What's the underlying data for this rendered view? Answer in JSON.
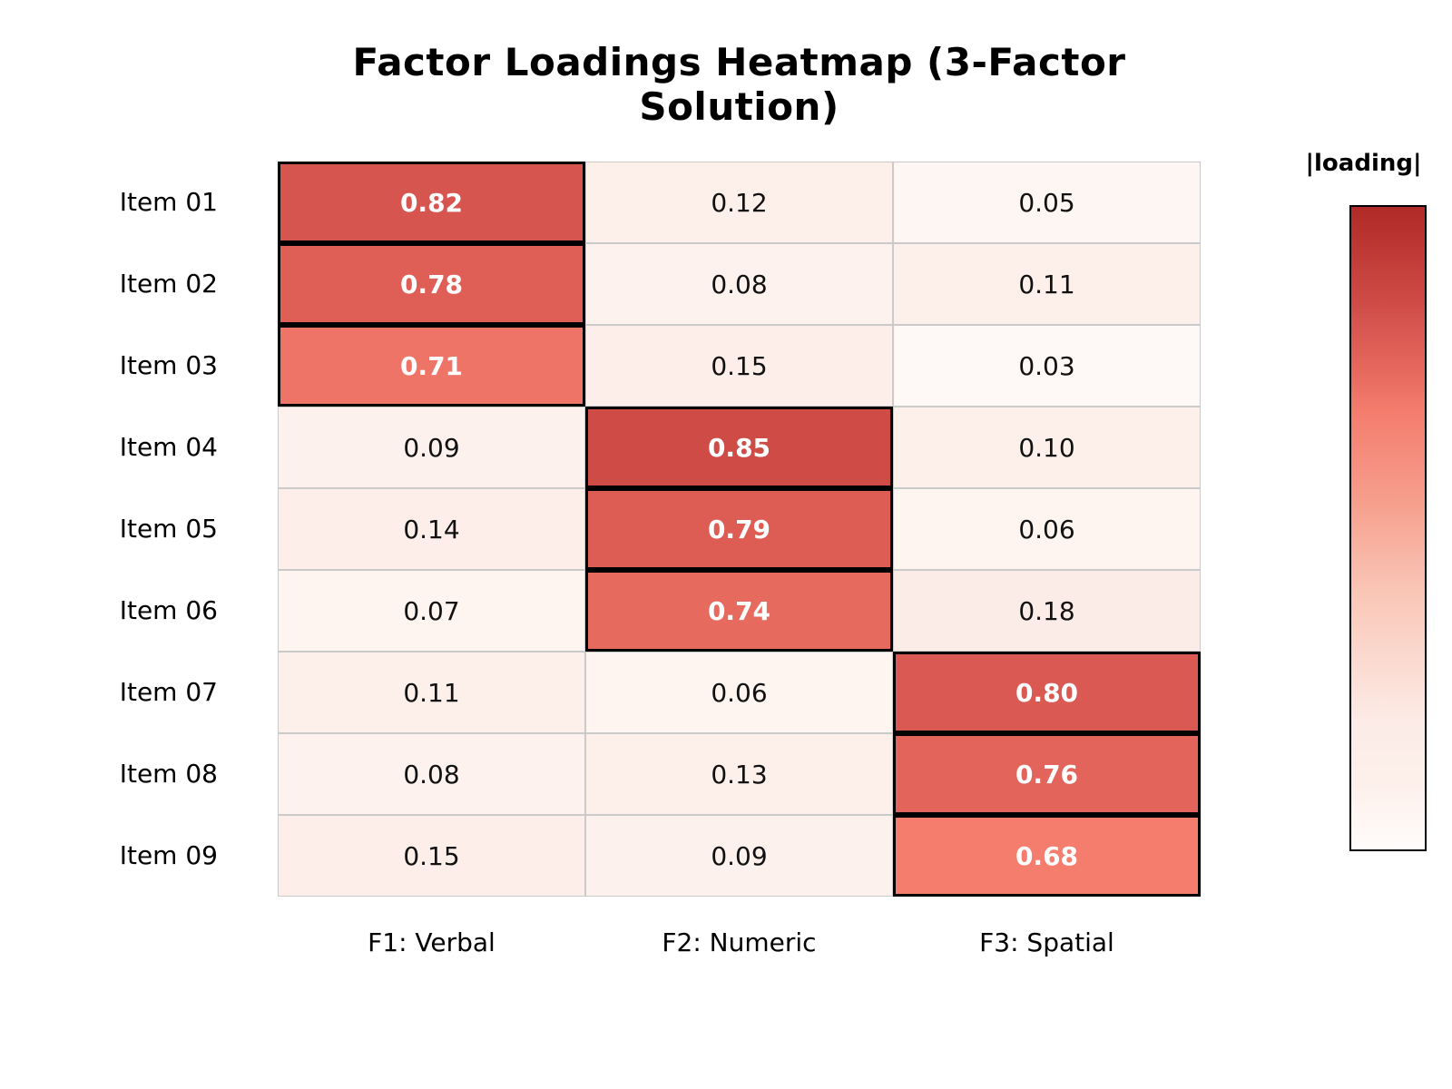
{
  "chart_data": {
    "type": "heatmap",
    "title": "Factor Loadings Heatmap (3-Factor Solution)",
    "rows": [
      "Item 01",
      "Item 02",
      "Item 03",
      "Item 04",
      "Item 05",
      "Item 06",
      "Item 07",
      "Item 08",
      "Item 09"
    ],
    "columns": [
      "F1: Verbal",
      "F2: Numeric",
      "F3: Spatial"
    ],
    "values": [
      [
        0.82,
        0.12,
        0.05
      ],
      [
        0.78,
        0.08,
        0.11
      ],
      [
        0.71,
        0.15,
        0.03
      ],
      [
        0.09,
        0.85,
        0.1
      ],
      [
        0.14,
        0.79,
        0.06
      ],
      [
        0.07,
        0.74,
        0.18
      ],
      [
        0.11,
        0.06,
        0.8
      ],
      [
        0.08,
        0.13,
        0.76
      ],
      [
        0.15,
        0.09,
        0.68
      ]
    ],
    "value_decimals": 2,
    "highlight_threshold": 0.4,
    "highlighted_cells": [
      [
        0,
        0
      ],
      [
        1,
        0
      ],
      [
        2,
        0
      ],
      [
        3,
        1
      ],
      [
        4,
        1
      ],
      [
        5,
        1
      ],
      [
        6,
        2
      ],
      [
        7,
        2
      ],
      [
        8,
        2
      ]
    ],
    "colorbar_label": "|loading|",
    "colorbar_position": "right",
    "colorbar_tick_labels": [],
    "color_domain": [
      0.0,
      1.0
    ],
    "colormap_stops": [
      {
        "v": 0.0,
        "hex": "#fffcfb"
      },
      {
        "v": 0.1,
        "hex": "#fdf0eb"
      },
      {
        "v": 0.2,
        "hex": "#fcebe6"
      },
      {
        "v": 0.4,
        "hex": "#f9c6b6"
      },
      {
        "v": 0.55,
        "hex": "#f69c8a"
      },
      {
        "v": 0.68,
        "hex": "#f47d6e"
      },
      {
        "v": 0.76,
        "hex": "#e3645a"
      },
      {
        "v": 0.82,
        "hex": "#d6554f"
      },
      {
        "v": 0.85,
        "hex": "#cf4c46"
      },
      {
        "v": 1.0,
        "hex": "#b02a26"
      }
    ],
    "style": {
      "background": "#ffffff",
      "cell_border": "#cacaca",
      "highlight_border": "#000000",
      "text_on_light": "#111111",
      "text_on_dark": "#ffffff"
    }
  }
}
